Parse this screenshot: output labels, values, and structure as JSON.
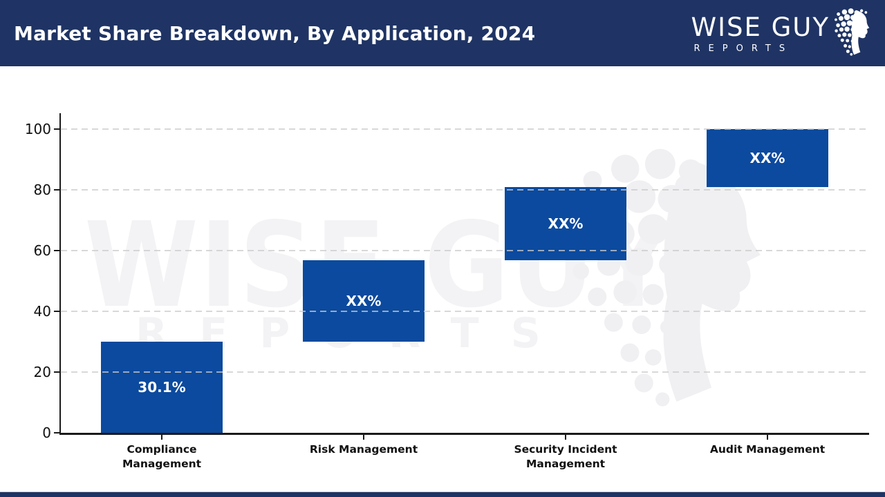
{
  "header": {
    "title": "Market Share Breakdown, By Application, 2024",
    "logo": {
      "name": "WISE GUY",
      "tagline": "REPORTS"
    }
  },
  "watermark": {
    "name": "WISE GUY",
    "tagline": "REPORTS"
  },
  "colors": {
    "header_navy": "#1f3464",
    "bar_blue": "#0b4a9e",
    "bar_label_white": "#ffffff",
    "watermark_grey": "#f3f3f5",
    "watermark_dots_grey": "#f0f0f3",
    "axis_black": "#1a1a1a",
    "grid_grey": "#cbcbcb"
  },
  "chart_data": {
    "type": "bar",
    "subtype": "waterfall",
    "title": "Market Share Breakdown, By Application, 2024",
    "categories": [
      "Compliance Management",
      "Risk Management",
      "Security Incident Management",
      "Audit Management"
    ],
    "values": [
      30.1,
      26.8,
      23.9,
      19.2
    ],
    "bar_labels": [
      "30.1%",
      "XX%",
      "XX%",
      "XX%"
    ],
    "segments": [
      {
        "category": "Compliance Management",
        "category_lines": [
          "Compliance",
          "Management"
        ],
        "start": 0,
        "end": 30.1,
        "label": "30.1%"
      },
      {
        "category": "Risk Management",
        "category_lines": [
          "Risk Management"
        ],
        "start": 30.1,
        "end": 56.9,
        "label": "XX%"
      },
      {
        "category": "Security Incident Management",
        "category_lines": [
          "Security Incident",
          "Management"
        ],
        "start": 56.9,
        "end": 80.8,
        "label": "XX%"
      },
      {
        "category": "Audit Management",
        "category_lines": [
          "Audit Management"
        ],
        "start": 80.8,
        "end": 100,
        "label": "XX%"
      }
    ],
    "yticks": [
      0,
      20,
      40,
      60,
      80,
      100
    ],
    "ylim": [
      0,
      100
    ],
    "xlabel": "",
    "ylabel": "",
    "grid": {
      "axis": "y",
      "style": "dashed"
    },
    "legend": "none",
    "bar_color": "#0b4a9e",
    "bar_label_color": "#ffffff"
  }
}
